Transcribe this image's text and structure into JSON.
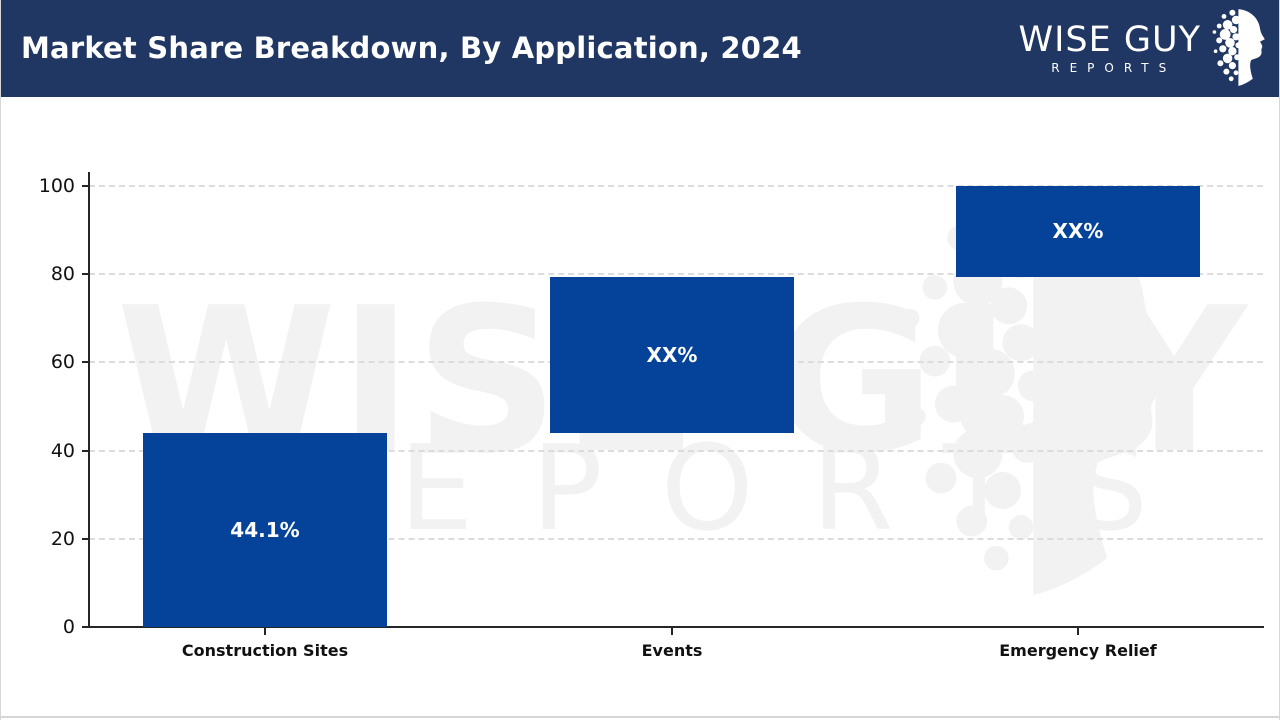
{
  "header": {
    "title": "Market Share Breakdown, By Application, 2024",
    "logo": {
      "line1": "WISE GUY",
      "line2": "REPORTS"
    }
  },
  "watermark": {
    "line1": "WISE GUY",
    "line2": "REPORTS"
  },
  "colors": {
    "header_background": "#203663",
    "bar": "#05439a",
    "bar_label": "#ffffff",
    "grid": "#dcdcdc",
    "axis": "#262626",
    "tick_text": "#111111",
    "watermark": "#f2f2f2"
  },
  "chart_data": {
    "type": "bar",
    "subtype": "floating-waterfall",
    "title": "Market Share Breakdown, By Application, 2024",
    "categories": [
      "Construction Sites",
      "Events",
      "Emergency Relief"
    ],
    "segments": [
      {
        "category": "Construction Sites",
        "start": 0,
        "end": 44.1,
        "label": "44.1%"
      },
      {
        "category": "Events",
        "start": 44.1,
        "end": 79.4,
        "label": "XX%"
      },
      {
        "category": "Emergency Relief",
        "start": 79.4,
        "end": 100,
        "label": "XX%"
      }
    ],
    "xlabel": "",
    "ylabel": "",
    "ylim": [
      0,
      100
    ],
    "yticks": [
      0,
      20,
      40,
      60,
      80,
      100
    ],
    "grid": true,
    "grid_style": "dashed",
    "legend": false,
    "bar_color": "#05439a",
    "bar_label_color": "#ffffff"
  }
}
